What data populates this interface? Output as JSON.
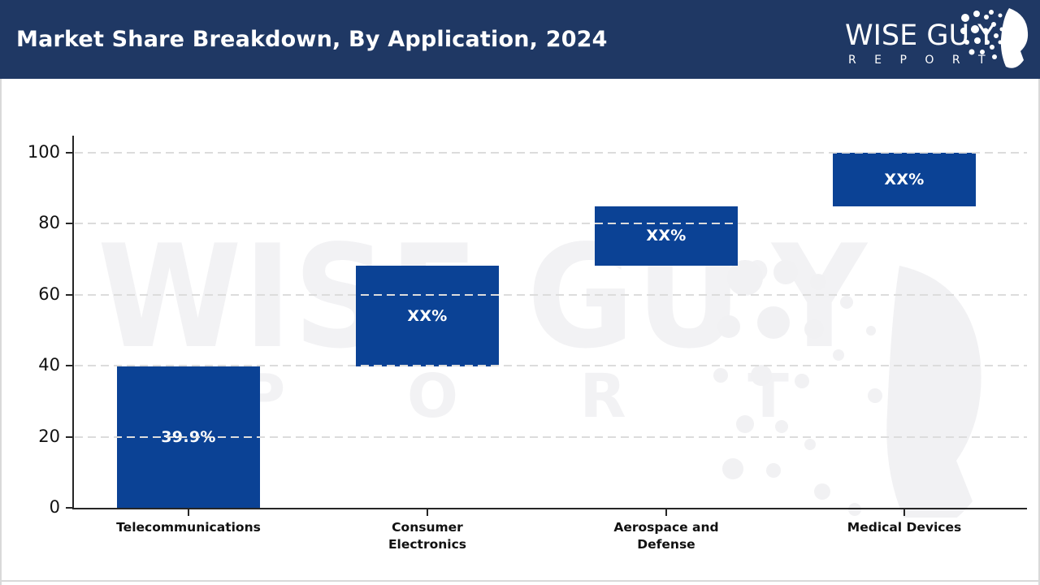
{
  "header": {
    "title": "Market Share Breakdown, By Application, 2024",
    "logo": {
      "brand_left": "WISE GU",
      "brand_right": "Y",
      "reports": "R E P O R T S"
    }
  },
  "watermark": {
    "line1_left": "WISE GU",
    "line1_right": "Y",
    "line2": "P O R T S"
  },
  "colors": {
    "header_bg": "#1f3864",
    "bar": "#0b4295",
    "grid": "#dcdcdc",
    "axis": "#262626",
    "watermark": "#f2f2f4",
    "bar_label": "#ffffff"
  },
  "chart_data": {
    "type": "bar",
    "subtype": "floating-waterfall",
    "title": "Market Share Breakdown, By Application, 2024",
    "categories": [
      "Telecommunications",
      "Consumer Electronics",
      "Aerospace and Defense",
      "Medical Devices"
    ],
    "category_display": [
      "Telecommunications",
      "Consumer\nElectronics",
      "Aerospace and\nDefense",
      "Medical Devices"
    ],
    "segments": [
      {
        "category": "Telecommunications",
        "start": 0,
        "end": 39.9,
        "label": "39.9%"
      },
      {
        "category": "Consumer Electronics",
        "start": 39.9,
        "end": 68.1,
        "label": "XX%"
      },
      {
        "category": "Aerospace and Defense",
        "start": 68.1,
        "end": 85.0,
        "label": "XX%"
      },
      {
        "category": "Medical Devices",
        "start": 85.0,
        "end": 100,
        "label": "XX%"
      }
    ],
    "ylim": [
      0,
      100
    ],
    "yticks": [
      0,
      20,
      40,
      60,
      80,
      100
    ],
    "xlabel": "",
    "ylabel": "",
    "grid": "horizontal-dashed",
    "legend": "none"
  }
}
